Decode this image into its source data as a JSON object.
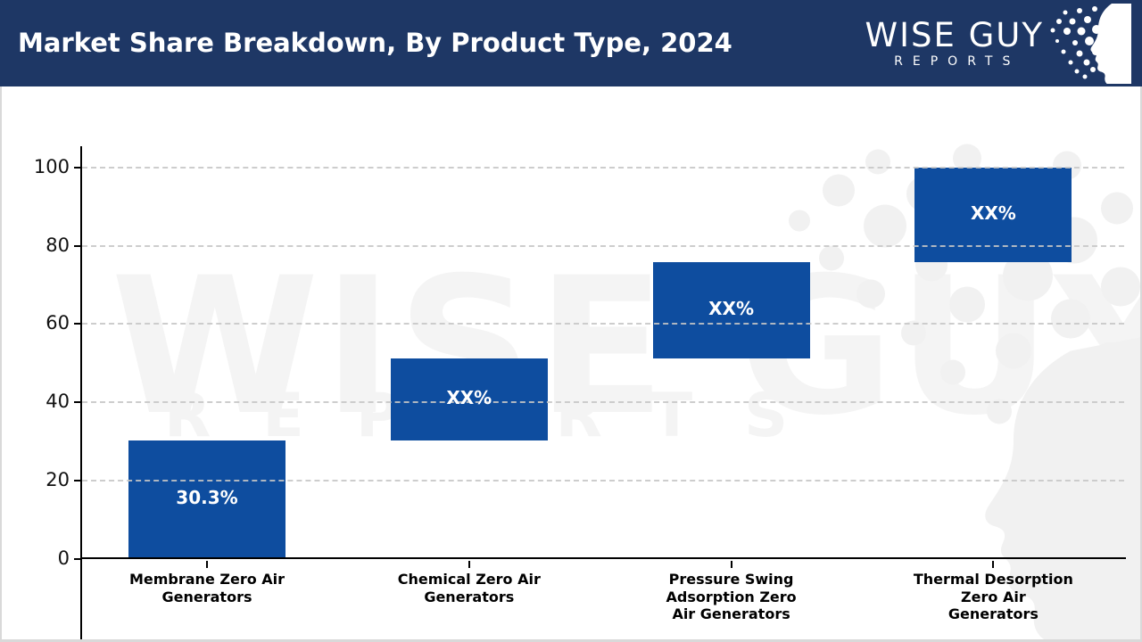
{
  "header": {
    "title": "Market Share Breakdown, By Product Type, 2024",
    "bg_color": "#1e3765",
    "logo": {
      "line1": "WISE GUY",
      "line2": "REPORTS"
    }
  },
  "watermark": {
    "line1": "WISE GUY",
    "line2": "REPORTS"
  },
  "chart_data": {
    "type": "bar",
    "subtype": "floating-waterfall",
    "title": "Market Share Breakdown, By Product Type, 2024",
    "categories": [
      "Membrane Zero Air\nGenerators",
      "Chemical Zero Air\nGenerators",
      "Pressure Swing\nAdsorption Zero\nAir Generators",
      "Thermal Desorption\nZero Air\nGenerators"
    ],
    "segments": [
      {
        "start": 0,
        "end": 30.3,
        "label": "30.3%"
      },
      {
        "start": 30.3,
        "end": 51.3,
        "label": "XX%"
      },
      {
        "start": 51.3,
        "end": 75.8,
        "label": "XX%"
      },
      {
        "start": 75.8,
        "end": 100,
        "label": "XX%"
      }
    ],
    "yticks": [
      0,
      20,
      40,
      60,
      80,
      100
    ],
    "ylim": [
      0,
      105
    ],
    "xlabel": "",
    "ylabel": "",
    "grid": true,
    "grid_style": "dashed",
    "legend": "none",
    "bar_color": "#0e4d9f",
    "grid_color": "#c6c6c6",
    "axis_color": "#000000"
  }
}
